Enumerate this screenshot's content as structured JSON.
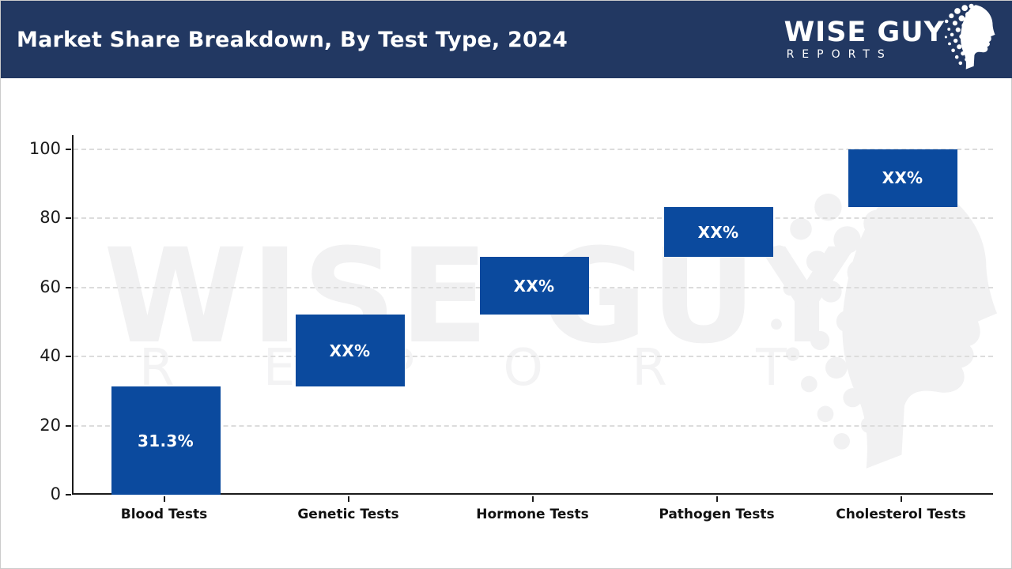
{
  "header": {
    "title": "Market Share Breakdown, By Test Type, 2024",
    "logo": {
      "brand": "WISE GUY",
      "sub": "REPORTS"
    }
  },
  "watermark": {
    "brand": "WISE GUY",
    "sub": "R E P O R T S"
  },
  "chart_data": {
    "type": "bar",
    "subtype": "waterfall",
    "title": "Market Share Breakdown, By Test Type, 2024",
    "categories": [
      "Blood Tests",
      "Genetic Tests",
      "Hormone Tests",
      "Pathogen Tests",
      "Cholesterol Tests"
    ],
    "bars": [
      {
        "category": "Blood Tests",
        "start": 0,
        "end": 31.3,
        "value_label": "31.3%"
      },
      {
        "category": "Genetic Tests",
        "start": 31.3,
        "end": 52.1,
        "value_label": "XX%"
      },
      {
        "category": "Hormone Tests",
        "start": 52.1,
        "end": 68.7,
        "value_label": "XX%"
      },
      {
        "category": "Pathogen Tests",
        "start": 68.7,
        "end": 83.1,
        "value_label": "XX%"
      },
      {
        "category": "Cholesterol Tests",
        "start": 83.1,
        "end": 100,
        "value_label": "XX%"
      }
    ],
    "xlabel": "",
    "ylabel": "",
    "yticks": [
      0,
      20,
      40,
      60,
      80,
      100
    ],
    "ylim": [
      0,
      104
    ],
    "grid": "horizontal-dashed",
    "legend": "none",
    "colors": {
      "bar": "#0b4a9e",
      "bar_label": "#ffffff",
      "axis": "#1a1a1a",
      "grid": "#dcdcdc",
      "header_bg": "#223862",
      "watermark": "#f1f1f2"
    }
  }
}
